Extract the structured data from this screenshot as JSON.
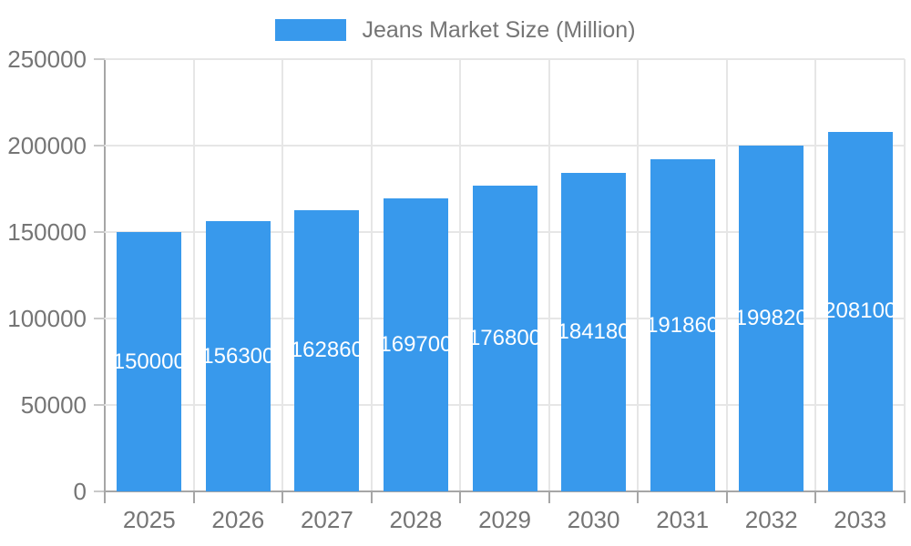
{
  "legend": {
    "label": "Jeans Market Size (Million)",
    "position": "top"
  },
  "chart_data": {
    "type": "bar",
    "title": "Jeans Market Size (Million)",
    "series_name": "Jeans Market Size (Million)",
    "categories": [
      "2025",
      "2026",
      "2027",
      "2028",
      "2029",
      "2030",
      "2031",
      "2032",
      "2033"
    ],
    "values": [
      150000,
      156300,
      162860,
      169700,
      176800,
      184180,
      191860,
      199820,
      208100
    ],
    "xlabel": "",
    "ylabel": "",
    "ylim": [
      0,
      250000
    ],
    "ytick_labels": [
      "0",
      "50000",
      "100000",
      "150000",
      "200000",
      "250000"
    ],
    "grid": true,
    "legend_position": "top",
    "bar_color": "#3899EC",
    "value_label_color": "#ffffff"
  },
  "colors": {
    "bar": "#3899EC",
    "axis_text": "#757575",
    "axis_line": "#a6a6a6",
    "gridline": "#e6e6e6",
    "tick": "#c9c9c9",
    "background": "#ffffff"
  }
}
